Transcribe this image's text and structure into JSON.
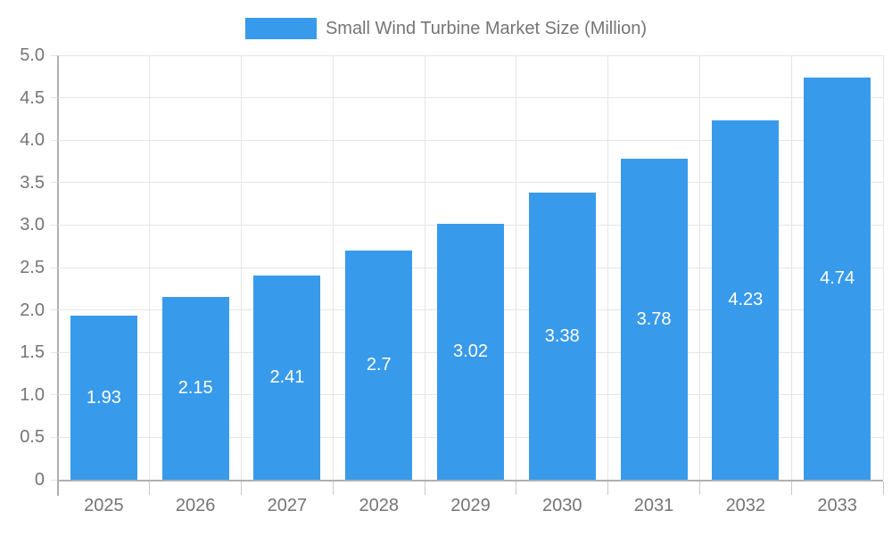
{
  "legend": {
    "label": "Small Wind Turbine Market Size (Million)"
  },
  "chart_data": {
    "type": "bar",
    "title": "",
    "categories": [
      "2025",
      "2026",
      "2027",
      "2028",
      "2029",
      "2030",
      "2031",
      "2032",
      "2033"
    ],
    "values": [
      1.93,
      2.15,
      2.41,
      2.7,
      3.02,
      3.38,
      3.78,
      4.23,
      4.74
    ],
    "series": [
      {
        "name": "Small Wind Turbine Market Size (Million)",
        "values": [
          1.93,
          2.15,
          2.41,
          2.7,
          3.02,
          3.38,
          3.78,
          4.23,
          4.74
        ]
      }
    ],
    "xlabel": "",
    "ylabel": "",
    "ylim": [
      0,
      5
    ],
    "ytick_step": 0.5,
    "ytick_labels": [
      "0",
      "0.5",
      "1.0",
      "1.5",
      "2.0",
      "2.5",
      "3.0",
      "3.5",
      "4.0",
      "4.5",
      "5.0"
    ],
    "grid": true,
    "legend_position": "top",
    "value_labels_inside_bars": true,
    "colors": {
      "bar": "#389AEB",
      "grid_line": "#e6e6e6",
      "axis_line": "#b0b0b0",
      "tick": "#c9c9c9",
      "axis_text": "#757575",
      "value_label_text": "#ffffff",
      "background": "#ffffff"
    }
  }
}
